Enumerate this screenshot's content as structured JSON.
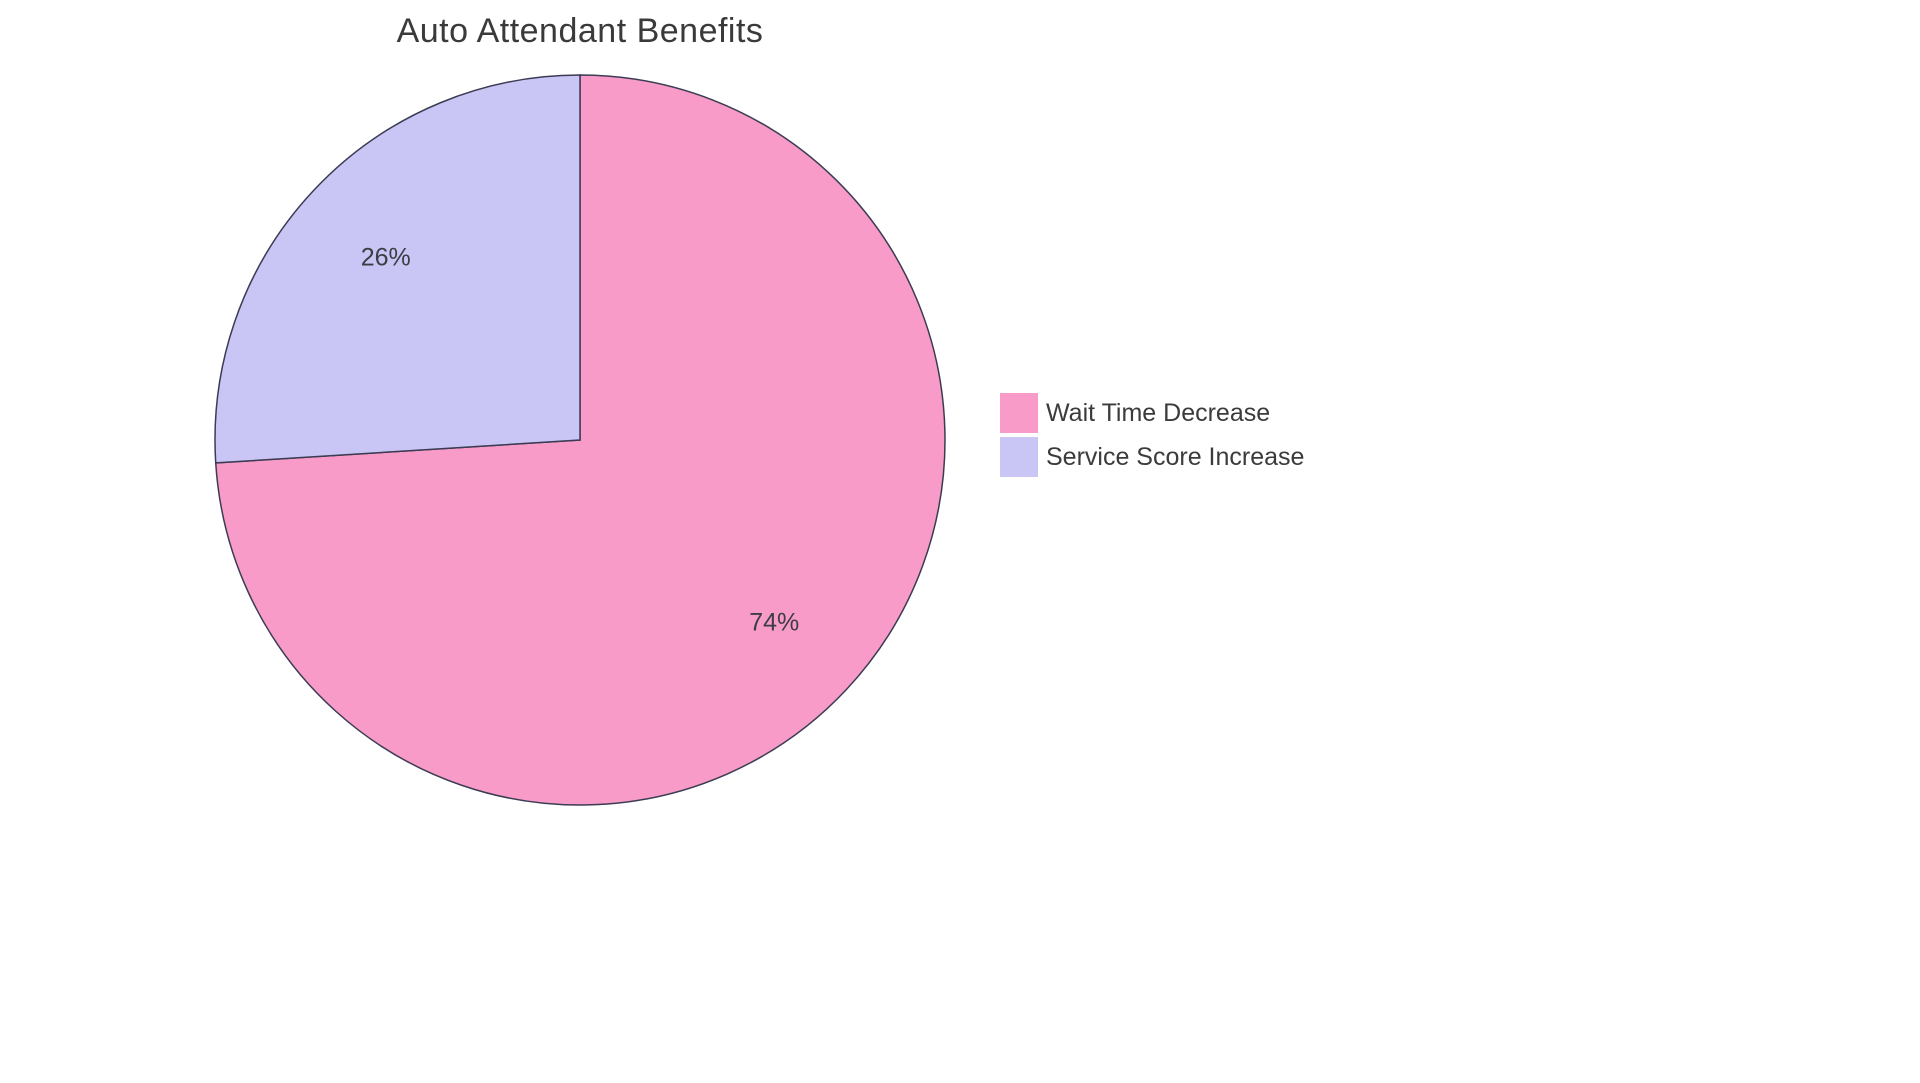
{
  "title": "Auto Attendant Benefits",
  "chart_data": {
    "type": "pie",
    "title": "Auto Attendant Benefits",
    "slices": [
      {
        "label": "Wait Time Decrease",
        "value": 74,
        "display": "74%",
        "color": "#f89bc8"
      },
      {
        "label": "Service Score Increase",
        "value": 26,
        "display": "26%",
        "color": "#c9c5f4"
      }
    ],
    "start_angle_deg": -90,
    "direction": "clockwise",
    "stroke_color": "#3b3b53",
    "stroke_width": 1.5,
    "legend_position": "right",
    "background": "#ffffff",
    "title_color": "#3a3a3a",
    "label_color": "#3d3d44"
  }
}
